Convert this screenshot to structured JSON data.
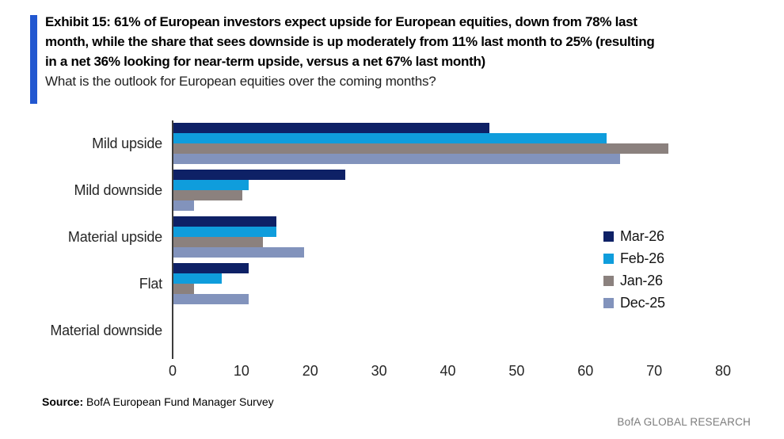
{
  "header": {
    "title_lines": [
      "Exhibit 15: 61% of European investors expect upside for European equities, down from 78% last",
      "month, while the share that sees downside is up moderately from 11% last month to 25% (resulting",
      "in a net 36% looking for near-term upside, versus a net 67% last month)"
    ],
    "subtitle": "What is the outlook for European equities over the coming months?",
    "accent_color": "#2257d0"
  },
  "chart_data": {
    "type": "bar",
    "orientation": "horizontal",
    "title": "Exhibit 15: 61% of European investors expect upside for European equities, down from 78% last month, while the share that sees downside is up moderately from 11% last month to 25% (resulting in a net 36% looking for near-term upside, versus a net 67% last month)",
    "subtitle": "What is the outlook for European equities over the coming months?",
    "categories": [
      "Mild upside",
      "Mild downside",
      "Material upside",
      "Flat",
      "Material downside"
    ],
    "series": [
      {
        "name": "Mar-26",
        "color": "#0e2166",
        "values": [
          46,
          25,
          15,
          11,
          0
        ]
      },
      {
        "name": "Feb-26",
        "color": "#0f9ddc",
        "values": [
          63,
          11,
          15,
          7,
          0
        ]
      },
      {
        "name": "Jan-26",
        "color": "#8b817e",
        "values": [
          72,
          10,
          13,
          3,
          0
        ]
      },
      {
        "name": "Dec-25",
        "color": "#8293bc",
        "values": [
          65,
          3,
          19,
          11,
          0
        ]
      }
    ],
    "xlabel": "",
    "ylabel": "",
    "xlim": [
      0,
      80
    ],
    "xticks": [
      0,
      10,
      20,
      30,
      40,
      50,
      60,
      70,
      80
    ],
    "grid": false,
    "legend_position": "middle-right",
    "axis_color": "#3c3c3c"
  },
  "footer": {
    "source_label": "Source:",
    "source_text": " BofA European Fund Manager Survey",
    "credit": "BofA GLOBAL RESEARCH"
  }
}
